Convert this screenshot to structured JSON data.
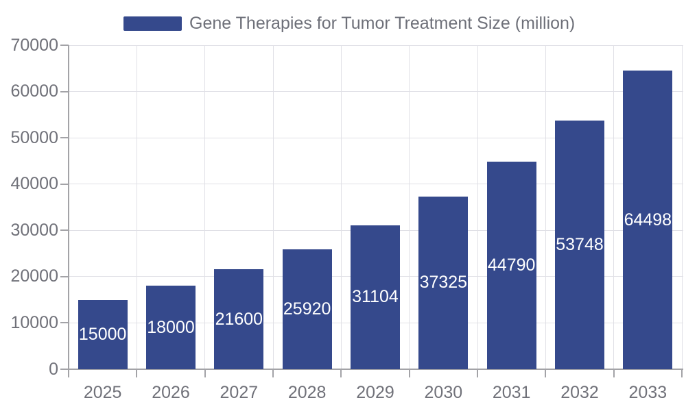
{
  "legend": {
    "label": "Gene Therapies for Tumor Treatment Size (million)"
  },
  "chart_data": {
    "type": "bar",
    "title": "Gene Therapies for Tumor Treatment Size (million)",
    "categories": [
      "2025",
      "2026",
      "2027",
      "2028",
      "2029",
      "2030",
      "2031",
      "2032",
      "2033"
    ],
    "values": [
      15000,
      18000,
      21600,
      25920,
      31104,
      37325,
      44790,
      53748,
      64498
    ],
    "xlabel": "",
    "ylabel": "",
    "ylim": [
      0,
      70000
    ],
    "y_ticks": [
      0,
      10000,
      20000,
      30000,
      40000,
      50000,
      60000,
      70000
    ],
    "grid": true,
    "legend_position": "top",
    "value_labels_inside_bars": true,
    "colors": {
      "bar": "#35498C",
      "bar_label": "#FFFFFF",
      "axis_line": "#A3A3A7",
      "gridline": "#E0E0E6",
      "tick_label": "#707179",
      "legend_text": "#6E7079"
    }
  }
}
